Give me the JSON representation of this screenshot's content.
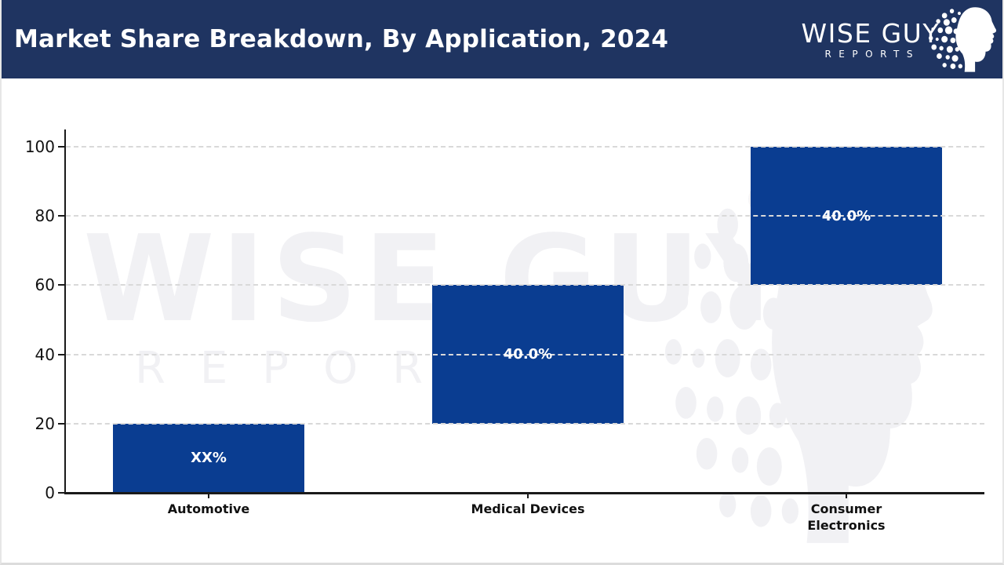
{
  "header": {
    "title": "Market Share Breakdown, By Application, 2024",
    "brand": {
      "name": "WISE GUY",
      "subtitle": "REPORTS"
    }
  },
  "watermark": {
    "line1": "WISE GUY",
    "line2": "REPORTS"
  },
  "colors": {
    "header_bg": "#1f3461",
    "bar": "#0a3d91",
    "grid": "#d9d9d9",
    "axis": "#1a1a1a",
    "watermark": "#f1f1f4",
    "text_on_dark": "#ffffff"
  },
  "chart_data": {
    "type": "bar",
    "variant": "waterfall",
    "title": "Market Share Breakdown, By Application, 2024",
    "categories": [
      "Automotive",
      "Medical Devices",
      "Consumer Electronics"
    ],
    "bars": [
      {
        "category": "Automotive",
        "start": 0,
        "end": 20,
        "value_label": "XX%"
      },
      {
        "category": "Medical Devices",
        "start": 20,
        "end": 60,
        "value_label": "40.0%"
      },
      {
        "category": "Consumer Electronics",
        "start": 60,
        "end": 100,
        "value_label": "40.0%"
      }
    ],
    "yticks": [
      0,
      20,
      40,
      60,
      80,
      100
    ],
    "ylim": [
      0,
      105
    ],
    "xlabel": "",
    "ylabel": "",
    "grid": "horizontal-dashed",
    "legend": "none",
    "bar_color": "#0a3d91",
    "value_label_color": "#ffffff"
  }
}
